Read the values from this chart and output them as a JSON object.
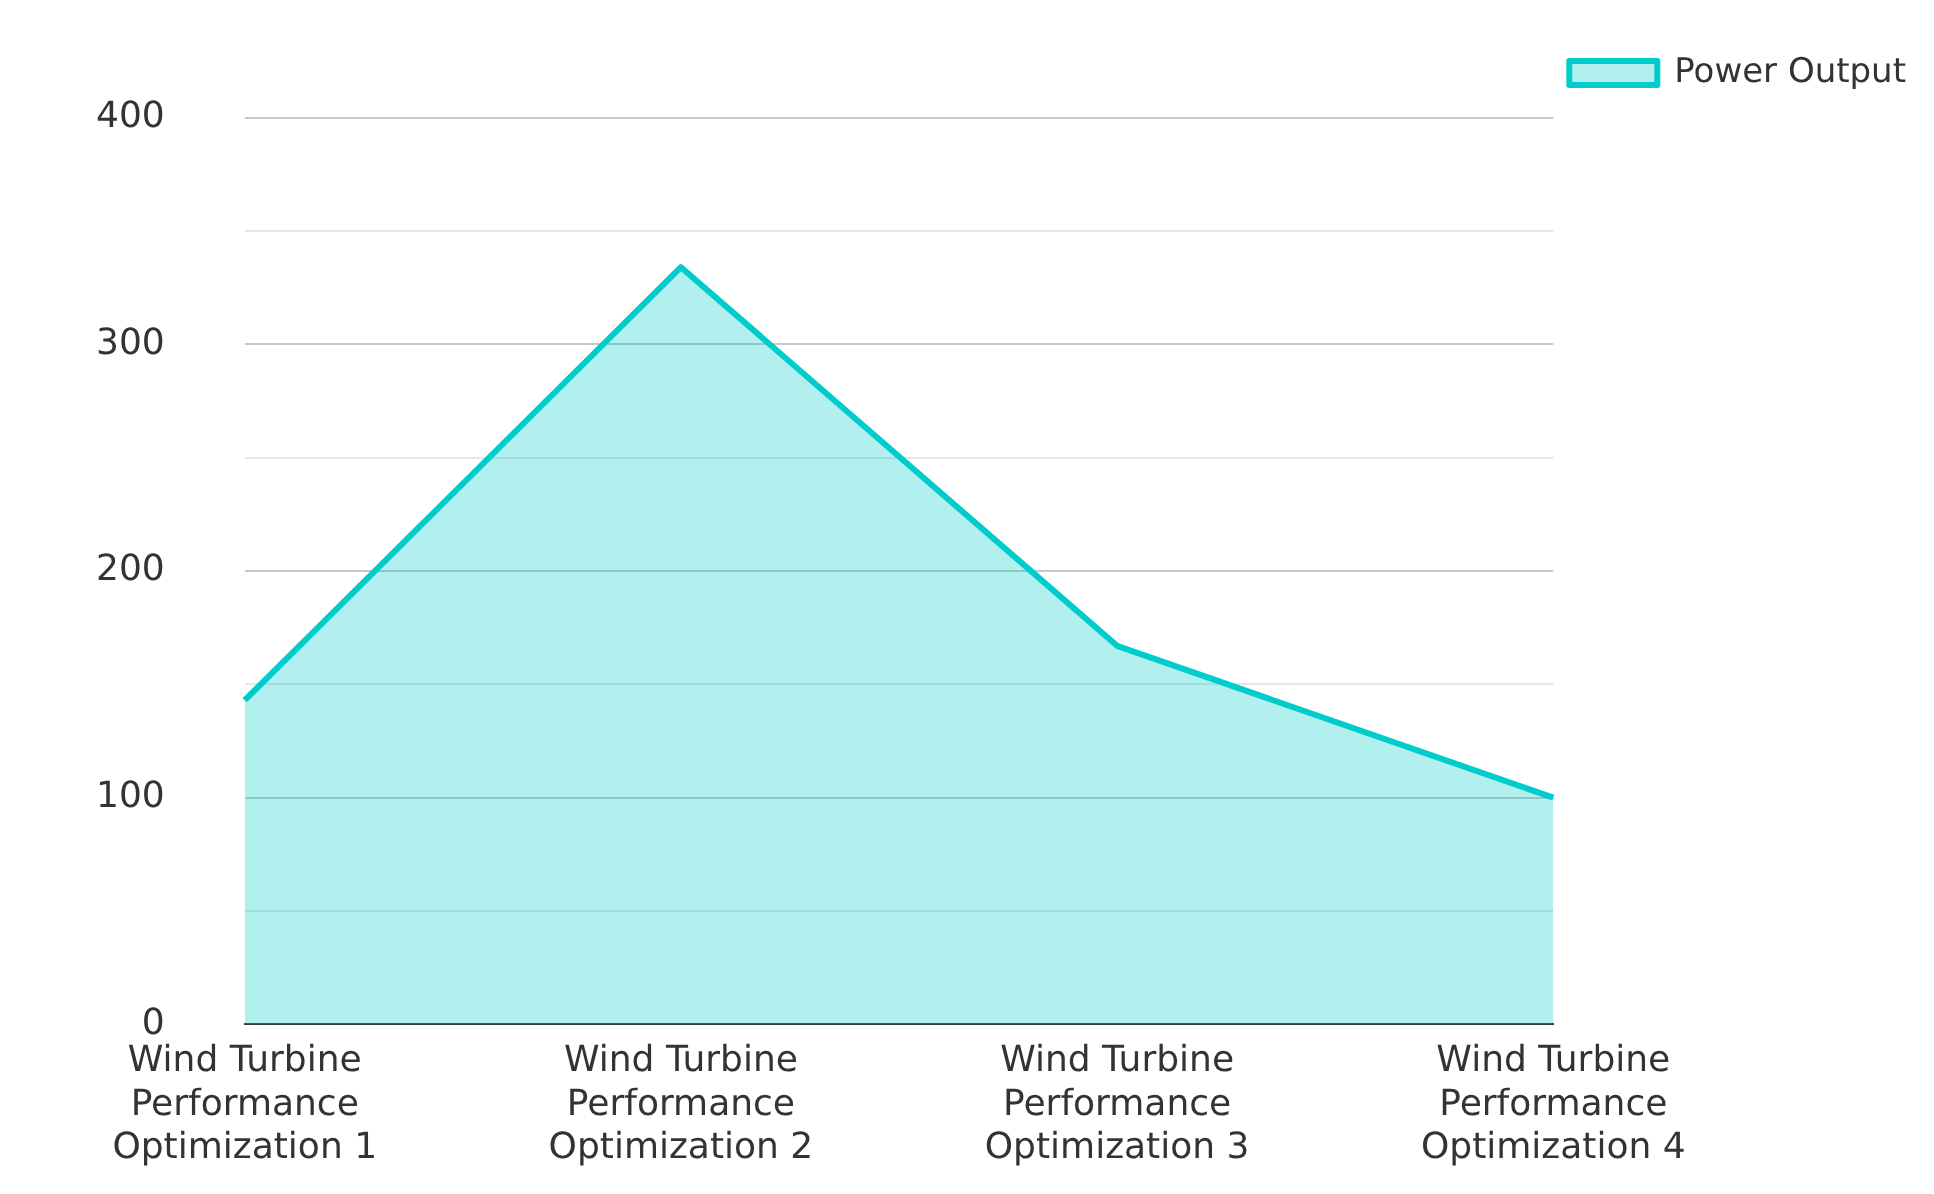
{
  "chart_data": {
    "type": "area",
    "categories": [
      "Wind Turbine Performance Optimization 1",
      "Wind Turbine Performance Optimization 2",
      "Wind Turbine Performance Optimization 3",
      "Wind Turbine Performance Optimization 4"
    ],
    "series": [
      {
        "name": "Power Output",
        "color": "#00cccc",
        "values": [
          143,
          334,
          167,
          100
        ]
      }
    ],
    "ylim": [
      0,
      400
    ],
    "yticks": [
      0,
      {
        "value": 50,
        "label": null
      },
      100,
      {
        "value": 150,
        "label": null
      },
      200,
      {
        "value": 250,
        "label": null
      },
      300,
      {
        "value": 350,
        "label": null
      },
      400
    ],
    "grid": "y",
    "legend": "top right",
    "marker": "none"
  }
}
